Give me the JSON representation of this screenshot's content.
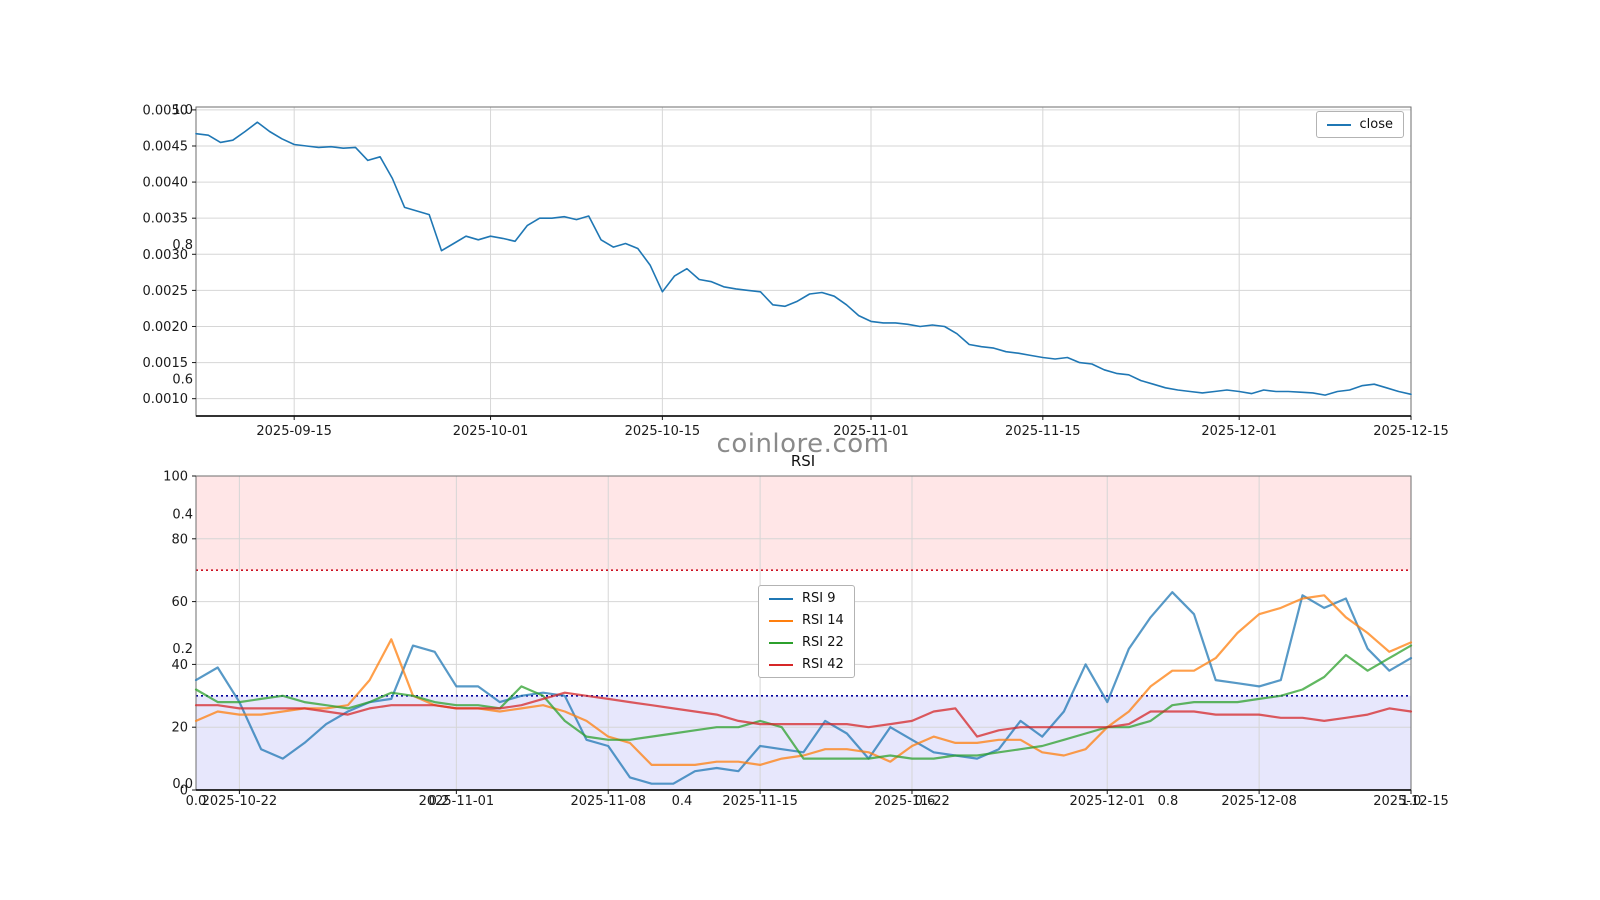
{
  "watermark": {
    "text": "coinlore.com"
  },
  "overlay_axis": {
    "x_labels": [
      "0.0",
      "0.2",
      "0.4",
      "0.6",
      "0.8",
      "1.0"
    ],
    "y_labels": [
      "0.0",
      "0.2",
      "0.4",
      "0.6",
      "0.8",
      "1.0"
    ]
  },
  "chart_data": [
    {
      "type": "line",
      "title": "",
      "xlabel": "",
      "ylabel": "",
      "grid": true,
      "legend_position": "upper right",
      "ylim": [
        0.00076,
        0.00504
      ],
      "y_ticks": [
        {
          "label": "0.0010",
          "v": 0.001
        },
        {
          "label": "0.0015",
          "v": 0.0015
        },
        {
          "label": "0.0020",
          "v": 0.002
        },
        {
          "label": "0.0025",
          "v": 0.0025
        },
        {
          "label": "0.0030",
          "v": 0.003
        },
        {
          "label": "0.0035",
          "v": 0.0035
        },
        {
          "label": "0.0040",
          "v": 0.004
        },
        {
          "label": "0.0045",
          "v": 0.0045
        },
        {
          "label": "0.0050",
          "v": 0.005
        }
      ],
      "x_ticks": [
        {
          "label": "2025-09-15",
          "i": 8
        },
        {
          "label": "2025-10-01",
          "i": 24
        },
        {
          "label": "2025-10-15",
          "i": 38
        },
        {
          "label": "2025-11-01",
          "i": 55
        },
        {
          "label": "2025-11-15",
          "i": 69
        },
        {
          "label": "2025-12-01",
          "i": 85
        },
        {
          "label": "2025-12-15",
          "i": 99
        }
      ],
      "series": [
        {
          "name": "close",
          "color": "#1f77b4",
          "width": 1.6,
          "opacity": 1,
          "values": [
            0.00467,
            0.00465,
            0.00455,
            0.00458,
            0.0047,
            0.00483,
            0.0047,
            0.0046,
            0.00452,
            0.0045,
            0.00448,
            0.00449,
            0.00447,
            0.00448,
            0.0043,
            0.00435,
            0.00405,
            0.00365,
            0.0036,
            0.00355,
            0.00305,
            0.00315,
            0.00325,
            0.0032,
            0.00325,
            0.00322,
            0.00318,
            0.0034,
            0.0035,
            0.0035,
            0.00352,
            0.00348,
            0.00353,
            0.0032,
            0.0031,
            0.00315,
            0.00308,
            0.00285,
            0.00248,
            0.0027,
            0.0028,
            0.00265,
            0.00262,
            0.00255,
            0.00252,
            0.0025,
            0.00248,
            0.0023,
            0.00228,
            0.00235,
            0.00245,
            0.00247,
            0.00242,
            0.0023,
            0.00215,
            0.00207,
            0.00205,
            0.00205,
            0.00203,
            0.002,
            0.00202,
            0.002,
            0.0019,
            0.00175,
            0.00172,
            0.0017,
            0.00165,
            0.00163,
            0.0016,
            0.00157,
            0.00155,
            0.00157,
            0.0015,
            0.00148,
            0.0014,
            0.00135,
            0.00133,
            0.00125,
            0.0012,
            0.00115,
            0.00112,
            0.0011,
            0.00108,
            0.0011,
            0.00112,
            0.0011,
            0.00107,
            0.00112,
            0.0011,
            0.0011,
            0.00109,
            0.00108,
            0.00105,
            0.0011,
            0.00112,
            0.00118,
            0.0012,
            0.00115,
            0.0011,
            0.00106
          ]
        }
      ]
    },
    {
      "type": "line",
      "title": "RSI",
      "xlabel": "",
      "ylabel": "",
      "grid": true,
      "legend_position": "center",
      "ylim": [
        0,
        100
      ],
      "y_ticks": [
        {
          "label": "0",
          "v": 0
        },
        {
          "label": "20",
          "v": 20
        },
        {
          "label": "40",
          "v": 40
        },
        {
          "label": "60",
          "v": 60
        },
        {
          "label": "80",
          "v": 80
        },
        {
          "label": "100",
          "v": 100
        }
      ],
      "x_ticks": [
        {
          "label": "2025-10-22",
          "i": 2
        },
        {
          "label": "2025-11-01",
          "i": 12
        },
        {
          "label": "2025-11-08",
          "i": 19
        },
        {
          "label": "2025-11-15",
          "i": 26
        },
        {
          "label": "2025-11-22",
          "i": 33
        },
        {
          "label": "2025-12-01",
          "i": 42
        },
        {
          "label": "2025-12-08",
          "i": 49
        },
        {
          "label": "2025-12-15",
          "i": 56
        }
      ],
      "bands": [
        {
          "from": 70,
          "to": 100,
          "color": "rgba(255,60,70,0.13)",
          "meaning": "overbought-zone"
        },
        {
          "from": 0,
          "to": 30,
          "color": "rgba(70,70,230,0.13)",
          "meaning": "oversold-zone"
        }
      ],
      "hlines": [
        {
          "v": 70,
          "color": "#cc1122"
        },
        {
          "v": 30,
          "color": "#000099"
        }
      ],
      "series": [
        {
          "name": "RSI 9",
          "color": "#1f77b4",
          "width": 2.2,
          "opacity": 0.75,
          "values": [
            35,
            39,
            28,
            13,
            10,
            15,
            21,
            25,
            28,
            29,
            46,
            44,
            33,
            33,
            28,
            30,
            31,
            30,
            16,
            14,
            4,
            2,
            2,
            6,
            7,
            6,
            14,
            13,
            12,
            22,
            18,
            10,
            20,
            16,
            12,
            11,
            10,
            13,
            22,
            17,
            25,
            40,
            28,
            45,
            55,
            63,
            56,
            35,
            34,
            33,
            35,
            62,
            58,
            61,
            45,
            38,
            42
          ]
        },
        {
          "name": "RSI 14",
          "color": "#ff7f0e",
          "width": 2.2,
          "opacity": 0.75,
          "values": [
            22,
            25,
            24,
            24,
            25,
            26,
            26,
            27,
            35,
            48,
            30,
            27,
            26,
            26,
            25,
            26,
            27,
            25,
            22,
            17,
            15,
            8,
            8,
            8,
            9,
            9,
            8,
            10,
            11,
            13,
            13,
            12,
            9,
            14,
            17,
            15,
            15,
            16,
            16,
            12,
            11,
            13,
            20,
            25,
            33,
            38,
            38,
            42,
            50,
            56,
            58,
            61,
            62,
            55,
            50,
            44,
            47
          ]
        },
        {
          "name": "RSI 22",
          "color": "#2ca02c",
          "width": 2.2,
          "opacity": 0.75,
          "values": [
            32,
            28,
            28,
            29,
            30,
            28,
            27,
            26,
            28,
            31,
            30,
            28,
            27,
            27,
            26,
            33,
            30,
            22,
            17,
            16,
            16,
            17,
            18,
            19,
            20,
            20,
            22,
            20,
            10,
            10,
            10,
            10,
            11,
            10,
            10,
            11,
            11,
            12,
            13,
            14,
            16,
            18,
            20,
            20,
            22,
            27,
            28,
            28,
            28,
            29,
            30,
            32,
            36,
            43,
            38,
            42,
            46
          ]
        },
        {
          "name": "RSI 42",
          "color": "#d62728",
          "width": 2.2,
          "opacity": 0.75,
          "values": [
            27,
            27,
            26,
            26,
            26,
            26,
            25,
            24,
            26,
            27,
            27,
            27,
            26,
            26,
            26,
            27,
            29,
            31,
            30,
            29,
            28,
            27,
            26,
            25,
            24,
            22,
            21,
            21,
            21,
            21,
            21,
            20,
            21,
            22,
            25,
            26,
            17,
            19,
            20,
            20,
            20,
            20,
            20,
            21,
            25,
            25,
            25,
            24,
            24,
            24,
            23,
            23,
            22,
            23,
            24,
            26,
            25
          ]
        }
      ]
    }
  ]
}
